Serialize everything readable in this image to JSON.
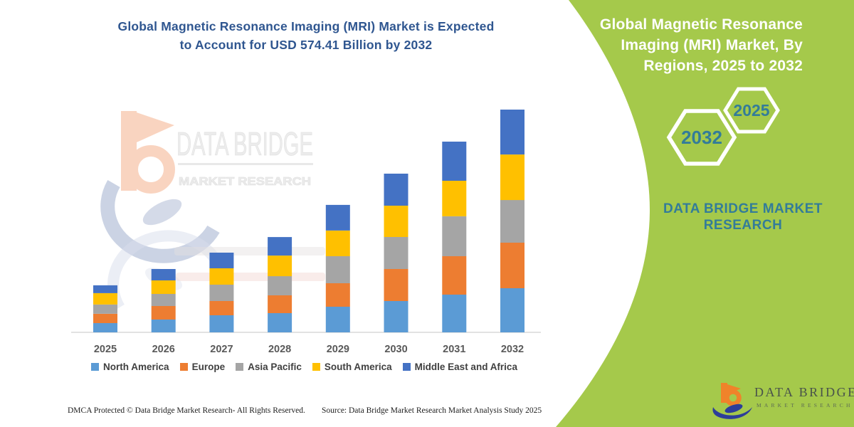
{
  "page": {
    "background": "#FFFFFF"
  },
  "header": {
    "title_lines": [
      "Global Magnetic Resonance Imaging (MRI) Market is Expected",
      "to Account for USD 574.41 Billion by 2032"
    ],
    "title_color": "#2F5690"
  },
  "chart_data": {
    "type": "bar",
    "stacked": true,
    "title": "Global Magnetic Resonance Imaging (MRI) Market is Expected to Account for USD 574.41 Billion by 2032",
    "unit": "USD Billion",
    "categories": [
      "2025",
      "2026",
      "2027",
      "2028",
      "2029",
      "2030",
      "2031",
      "2032"
    ],
    "series": [
      {
        "name": "North America",
        "color": "#5B9BD5",
        "values": [
          23.9,
          33.0,
          44.0,
          49.5,
          66.1,
          80.7,
          97.3,
          113.8
        ]
      },
      {
        "name": "Europe",
        "color": "#ED7D31",
        "values": [
          23.9,
          34.9,
          36.7,
          45.9,
          60.6,
          82.6,
          99.1,
          117.4
        ]
      },
      {
        "name": "Asia Pacific",
        "color": "#A5A5A5",
        "values": [
          23.9,
          31.2,
          42.2,
          49.5,
          69.7,
          82.6,
          102.8,
          110.1
        ]
      },
      {
        "name": "South America",
        "color": "#FFC000",
        "values": [
          29.4,
          34.9,
          42.2,
          53.2,
          66.1,
          80.7,
          91.8,
          117.4
        ]
      },
      {
        "name": "Middle East and Africa",
        "color": "#4472C4",
        "values": [
          20.2,
          29.4,
          40.4,
          47.7,
          66.1,
          82.6,
          100.9,
          115.71
        ]
      }
    ],
    "totals": [
      121.3,
      163.4,
      205.5,
      245.8,
      328.6,
      409.2,
      491.9,
      574.41
    ],
    "ylim": [
      0,
      600
    ],
    "gridlines": false,
    "y_axis_shown": false,
    "legend_position": "bottom",
    "values_note": "values estimated from bar heights; 2032 total anchored to USD 574.41 billion from title"
  },
  "watermark": {
    "line1": "DATA BRIDGE",
    "line2": "MARKET RESEARCH"
  },
  "sidebar": {
    "panel_color": "#A5C94B",
    "title": "Global Magnetic Resonance Imaging (MRI) Market, By Regions, 2025 to 2032",
    "title_lines": [
      "Global Magnetic Resonance",
      "Imaging (MRI) Market, By",
      "Regions, 2025 to 2032"
    ],
    "hexagons": [
      {
        "label": "2032"
      },
      {
        "label": "2025"
      }
    ],
    "brand_caption": "DATA BRIDGE MARKET RESEARCH",
    "accent_text_color": "#337C99"
  },
  "footer_logo": {
    "name": "DATA BRIDGE",
    "subtitle": "MARKET RESEARCH",
    "mark_orange": "#F0832A",
    "mark_blue": "#2D3E99"
  },
  "footer": {
    "left": "DMCA Protected © Data Bridge Market Research-  All Rights Reserved.",
    "source": "Source: Data Bridge Market Research  Market Analysis Study 2025"
  }
}
